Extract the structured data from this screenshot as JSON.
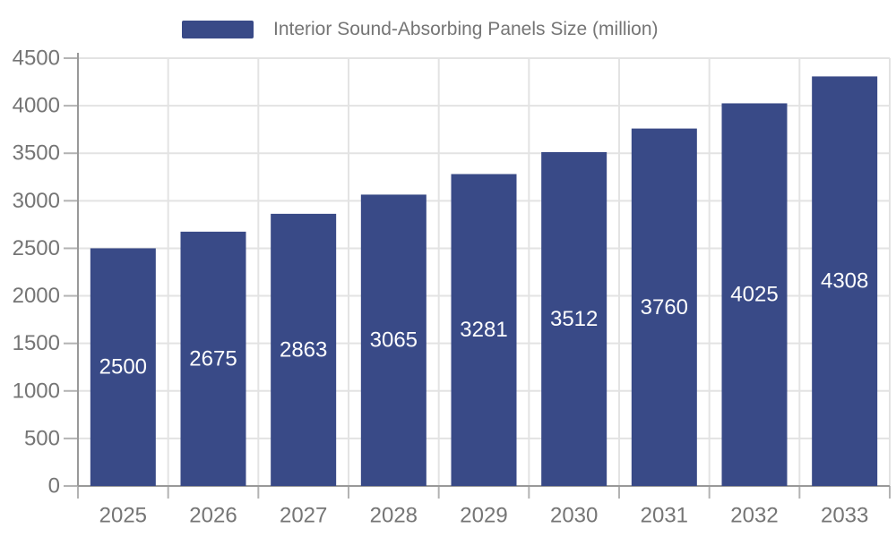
{
  "legend": {
    "label": "Interior Sound-Absorbing Panels Size (million)"
  },
  "chart_data": {
    "type": "bar",
    "title": "Interior Sound-Absorbing Panels Size (million)",
    "categories": [
      "2025",
      "2026",
      "2027",
      "2028",
      "2029",
      "2030",
      "2031",
      "2032",
      "2033"
    ],
    "values": [
      2500,
      2675,
      2863,
      3065,
      3281,
      3512,
      3760,
      4025,
      4308
    ],
    "series": [
      {
        "name": "Interior Sound-Absorbing Panels Size (million)",
        "values": [
          2500,
          2675,
          2863,
          3065,
          3281,
          3512,
          3760,
          4025,
          4308
        ]
      }
    ],
    "xlabel": "",
    "ylabel": "",
    "ylim": [
      0,
      4500
    ],
    "y_ticks": [
      0,
      500,
      1000,
      1500,
      2000,
      2500,
      3000,
      3500,
      4000,
      4500
    ],
    "grid": true,
    "legend_position": "top",
    "bar_color": "#394a87",
    "value_label_color": "#ffffff",
    "axis_label_color": "#757575",
    "grid_color": "#e3e3e3",
    "axis_line_color": "#999999",
    "tick_color": "#b3b3b3"
  }
}
